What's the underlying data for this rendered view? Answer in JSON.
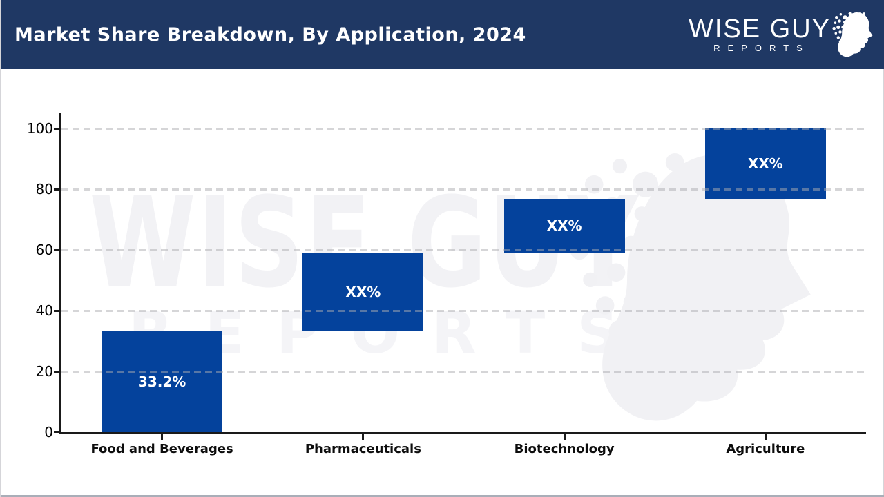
{
  "page": {
    "header": {
      "title": "Market Share Breakdown, By Application, 2024",
      "logo": {
        "line1": "WISE GUY",
        "line2": "REPORTS"
      }
    },
    "watermark": {
      "line1": "WISE GUY",
      "line2": "REPORTS"
    },
    "colors": {
      "header_bg": "#1f3864",
      "bar_blue": "#04429c",
      "axis": "#1a1a1a",
      "gridline_dashed": "#d9d9d9",
      "watermark": "#f2f2f5",
      "bar_label_text": "#ffffff",
      "title_text": "#ffffff"
    }
  },
  "chart_data": {
    "type": "bar",
    "subtype": "waterfall",
    "title": "Market Share Breakdown, By Application, 2024",
    "categories": [
      "Food and Beverages",
      "Pharmaceuticals",
      "Biotechnology",
      "Agriculture"
    ],
    "segments": [
      {
        "category": "Food and Beverages",
        "start": 0,
        "end": 33.2,
        "label": "33.2%"
      },
      {
        "category": "Pharmaceuticals",
        "start": 33.2,
        "end": 59.2,
        "label": "XX%"
      },
      {
        "category": "Biotechnology",
        "start": 59.2,
        "end": 76.6,
        "label": "XX%"
      },
      {
        "category": "Agriculture",
        "start": 76.6,
        "end": 100,
        "label": "XX%"
      }
    ],
    "xlabel": "",
    "ylabel": "",
    "ylim": [
      0,
      105
    ],
    "yticks": [
      0,
      20,
      40,
      60,
      80,
      100
    ],
    "grid": "horizontal-dashed",
    "legend": "none",
    "bar_color": "#04429c",
    "value_labels": "inside-center"
  }
}
